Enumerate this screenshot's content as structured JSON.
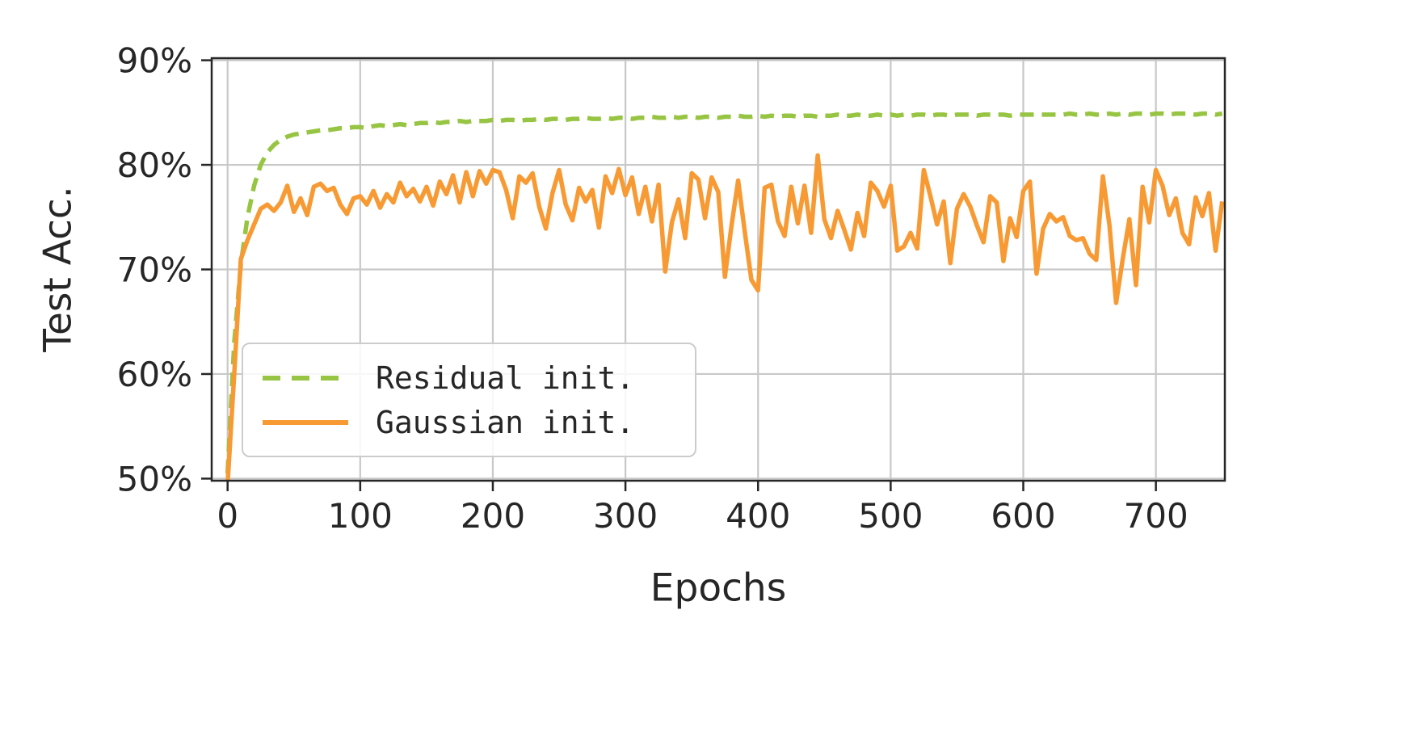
{
  "chart_data": {
    "type": "line",
    "title": "",
    "xlabel": "Epochs",
    "ylabel": "Test Acc.",
    "xlim": [
      -12,
      752
    ],
    "ylim": [
      49.8,
      90.2
    ],
    "xticks": [
      0,
      100,
      200,
      300,
      400,
      500,
      600,
      700
    ],
    "xtick_labels": [
      "0",
      "100",
      "200",
      "300",
      "400",
      "500",
      "600",
      "700"
    ],
    "yticks": [
      50,
      60,
      70,
      80,
      90
    ],
    "ytick_labels": [
      "50%",
      "60%",
      "70%",
      "80%",
      "90%"
    ],
    "grid": true,
    "grid_color": "#c8c8c8",
    "spine_color": "#262626",
    "text_color": "#262626",
    "legend_position": "lower left",
    "x": [
      0,
      5,
      10,
      15,
      20,
      25,
      30,
      35,
      40,
      45,
      50,
      55,
      60,
      65,
      70,
      75,
      80,
      85,
      90,
      95,
      100,
      105,
      110,
      115,
      120,
      125,
      130,
      135,
      140,
      145,
      150,
      155,
      160,
      165,
      170,
      175,
      180,
      185,
      190,
      195,
      200,
      205,
      210,
      215,
      220,
      225,
      230,
      235,
      240,
      245,
      250,
      255,
      260,
      265,
      270,
      275,
      280,
      285,
      290,
      295,
      300,
      305,
      310,
      315,
      320,
      325,
      330,
      335,
      340,
      345,
      350,
      355,
      360,
      365,
      370,
      375,
      380,
      385,
      390,
      395,
      400,
      405,
      410,
      415,
      420,
      425,
      430,
      435,
      440,
      445,
      450,
      455,
      460,
      465,
      470,
      475,
      480,
      485,
      490,
      495,
      500,
      505,
      510,
      515,
      520,
      525,
      530,
      535,
      540,
      545,
      550,
      555,
      560,
      565,
      570,
      575,
      580,
      585,
      590,
      595,
      600,
      605,
      610,
      615,
      620,
      625,
      630,
      635,
      640,
      645,
      650,
      655,
      660,
      665,
      670,
      675,
      680,
      685,
      690,
      695,
      700,
      705,
      710,
      715,
      720,
      725,
      730,
      735,
      740,
      745,
      750
    ],
    "series": [
      {
        "name": "Residual init.",
        "color": "#97c543",
        "style": "dashed",
        "values": [
          50.5,
          63,
          70.5,
          75,
          78,
          80,
          81.2,
          81.9,
          82.4,
          82.7,
          82.9,
          83.0,
          83.1,
          83.2,
          83.3,
          83.3,
          83.4,
          83.5,
          83.5,
          83.6,
          83.6,
          83.5,
          83.7,
          83.8,
          83.7,
          83.8,
          83.9,
          83.8,
          83.9,
          84.0,
          84.0,
          84.1,
          84.0,
          84.1,
          84.1,
          84.2,
          84.1,
          84.2,
          84.2,
          84.2,
          84.3,
          84.2,
          84.3,
          84.3,
          84.2,
          84.3,
          84.3,
          84.4,
          84.3,
          84.4,
          84.4,
          84.3,
          84.4,
          84.4,
          84.5,
          84.4,
          84.4,
          84.5,
          84.4,
          84.5,
          84.5,
          84.4,
          84.5,
          84.5,
          84.6,
          84.5,
          84.5,
          84.6,
          84.5,
          84.6,
          84.6,
          84.5,
          84.6,
          84.6,
          84.5,
          84.6,
          84.6,
          84.7,
          84.6,
          84.6,
          84.7,
          84.6,
          84.7,
          84.6,
          84.7,
          84.7,
          84.6,
          84.7,
          84.7,
          84.6,
          84.7,
          84.7,
          84.8,
          84.7,
          84.7,
          84.8,
          84.7,
          84.7,
          84.8,
          84.7,
          84.8,
          84.7,
          84.8,
          84.7,
          84.8,
          84.8,
          84.7,
          84.8,
          84.8,
          84.7,
          84.8,
          84.8,
          84.8,
          84.7,
          84.8,
          84.8,
          84.8,
          84.8,
          84.7,
          84.8,
          84.8,
          84.8,
          84.8,
          84.8,
          84.8,
          84.8,
          84.8,
          84.9,
          84.8,
          84.8,
          84.9,
          84.8,
          84.8,
          84.9,
          84.8,
          84.9,
          84.8,
          84.9,
          84.9,
          84.8,
          84.9,
          84.9,
          84.8,
          84.9,
          84.9,
          84.9,
          84.8,
          84.9,
          84.9,
          84.8,
          84.9
        ]
      },
      {
        "name": "Gaussian init.",
        "color": "#f89a34",
        "style": "solid",
        "values": [
          49.5,
          60,
          71,
          72.8,
          74.3,
          75.8,
          76.2,
          75.6,
          76.4,
          78.0,
          75.5,
          76.8,
          75.2,
          77.9,
          78.2,
          77.5,
          77.8,
          76.2,
          75.3,
          76.8,
          77.0,
          76.2,
          77.5,
          75.9,
          77.2,
          76.4,
          78.3,
          77.0,
          77.7,
          76.5,
          77.9,
          76.1,
          78.4,
          77.2,
          79.0,
          76.4,
          79.3,
          77.0,
          79.4,
          78.2,
          79.5,
          79.3,
          77.6,
          74.9,
          78.9,
          78.3,
          79.2,
          76.0,
          73.9,
          77.3,
          79.5,
          76.2,
          74.7,
          77.8,
          76.5,
          77.6,
          74.0,
          78.9,
          77.3,
          79.6,
          77.1,
          78.8,
          75.3,
          77.9,
          74.6,
          78.1,
          69.8,
          74.5,
          76.7,
          73.0,
          79.2,
          78.6,
          74.9,
          78.8,
          77.4,
          69.3,
          74.2,
          78.5,
          73.6,
          69.0,
          68.0,
          77.8,
          78.1,
          74.6,
          73.2,
          77.9,
          74.4,
          78.0,
          73.5,
          80.9,
          74.8,
          73.0,
          75.6,
          73.8,
          71.9,
          75.4,
          73.2,
          78.3,
          77.5,
          76.0,
          78.0,
          71.8,
          72.2,
          73.5,
          72.0,
          79.5,
          77.0,
          74.3,
          76.5,
          70.6,
          75.8,
          77.2,
          76.0,
          74.2,
          72.6,
          77.0,
          76.4,
          70.8,
          74.9,
          73.1,
          77.5,
          78.4,
          69.6,
          73.9,
          75.3,
          74.6,
          75.0,
          73.2,
          72.8,
          73.0,
          71.5,
          70.9,
          78.9,
          74.2,
          66.8,
          71.0,
          74.8,
          68.5,
          77.9,
          74.5,
          79.5,
          78.0,
          75.2,
          76.8,
          73.5,
          72.4,
          76.9,
          75.1,
          77.3,
          71.8,
          76.5
        ]
      }
    ]
  }
}
